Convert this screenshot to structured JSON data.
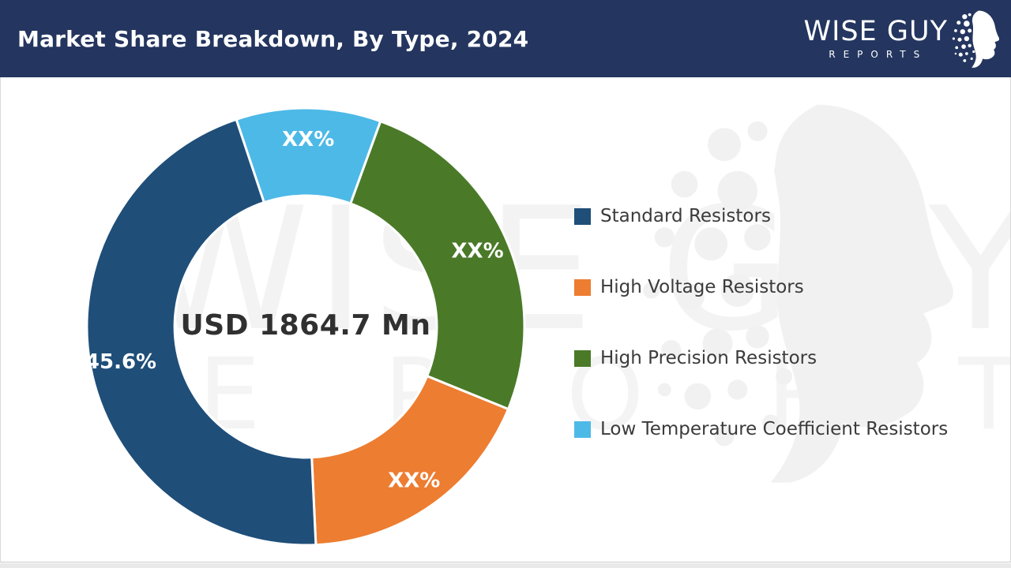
{
  "header": {
    "title": "Market Share Breakdown, By Type, 2024",
    "logo": {
      "line1": "WISE GUY",
      "line2": "REPORTS"
    }
  },
  "watermark": {
    "line1": "WISE GUY",
    "line2": "EPORT"
  },
  "chart_data": {
    "type": "donut",
    "title": "Market Share Breakdown, By Type, 2024",
    "center_label": "USD 1864.7 Mn",
    "start_angle_deg": 108.5,
    "direction": "clockwise",
    "inner_outer_radius_ratio": 0.6,
    "legend_position": "right",
    "segments": [
      {
        "name": "Low Temperature Coefficient Resistors",
        "label": "XX%",
        "value_pct": 10.7,
        "color": "#4DB9E7"
      },
      {
        "name": "High Precision Resistors",
        "label": "XX%",
        "value_pct": 25.6,
        "color": "#4A7A28"
      },
      {
        "name": "High Voltage Resistors",
        "label": "XX%",
        "value_pct": 18.1,
        "color": "#ED7D31"
      },
      {
        "name": "Standard Resistors",
        "label": "45.6%",
        "value_pct": 45.6,
        "color": "#1F4E79"
      }
    ],
    "legend": [
      {
        "label": "Standard Resistors",
        "color": "#1F4E79"
      },
      {
        "label": "High Voltage Resistors",
        "color": "#ED7D31"
      },
      {
        "label": "High Precision Resistors",
        "color": "#4A7A28"
      },
      {
        "label": "Low Temperature Coefficient Resistors",
        "color": "#4DB9E7"
      }
    ]
  },
  "colors": {
    "header_bg": "#24365F",
    "footer_bg": "#e9e9e9",
    "center_text": "#303030",
    "legend_text": "#3b3b3b",
    "segment_label_text": "#ffffff"
  }
}
